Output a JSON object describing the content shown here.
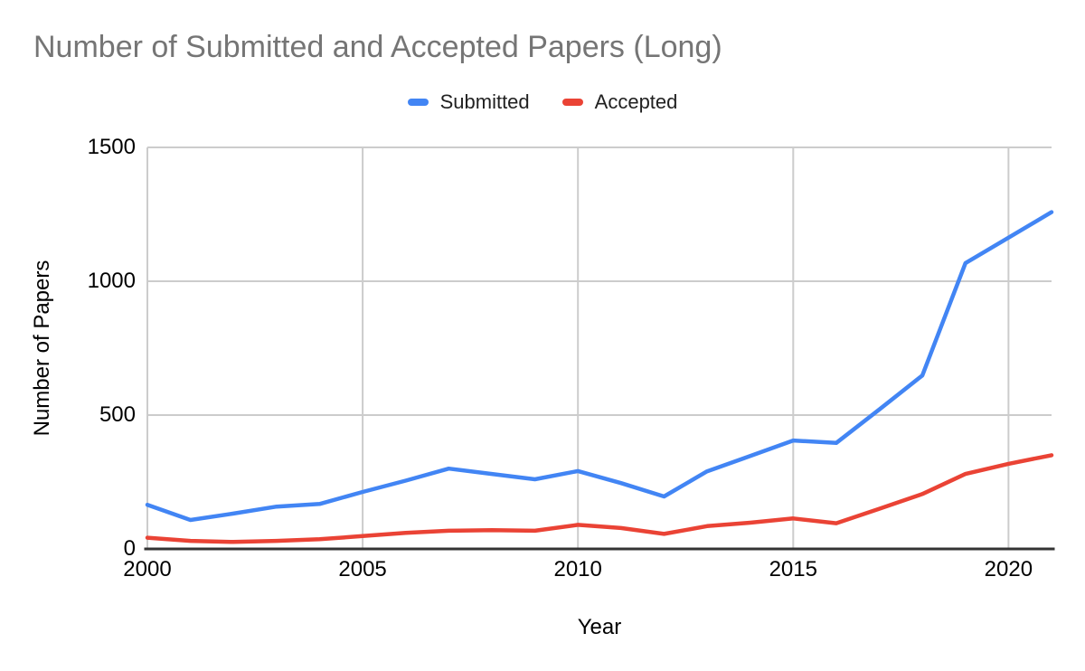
{
  "title": {
    "text": "Number of Submitted and Accepted Papers (Long)",
    "color": "#757575"
  },
  "legend": {
    "items": [
      {
        "label": "Submitted",
        "color": "#4285f4"
      },
      {
        "label": "Accepted",
        "color": "#ea4335"
      }
    ]
  },
  "chart_data": {
    "type": "line",
    "title": "Number of Submitted and Accepted Papers (Long)",
    "xlabel": "Year",
    "ylabel": "Number of Papers",
    "x": [
      2000,
      2001,
      2002,
      2003,
      2004,
      2005,
      2006,
      2007,
      2008,
      2009,
      2010,
      2011,
      2012,
      2013,
      2014,
      2015,
      2016,
      2017,
      2018,
      2019,
      2020,
      2021
    ],
    "series": [
      {
        "name": "Submitted",
        "color": "#4285f4",
        "values": [
          165,
          108,
          132,
          158,
          168,
          213,
          255,
          300,
          280,
          260,
          291,
          246,
          196,
          290,
          347,
          405,
          396,
          521,
          648,
          1068,
          1163,
          1258
        ]
      },
      {
        "name": "Accepted",
        "color": "#ea4335",
        "values": [
          42,
          30,
          26,
          30,
          36,
          48,
          60,
          68,
          70,
          68,
          90,
          78,
          56,
          85,
          98,
          114,
          96,
          150,
          205,
          280,
          318,
          350
        ]
      }
    ],
    "xlim": [
      2000,
      2021
    ],
    "ylim": [
      0,
      1500
    ],
    "x_ticks": [
      2000,
      2005,
      2010,
      2015,
      2020
    ],
    "y_ticks": [
      0,
      500,
      1000,
      1500
    ],
    "grid": true,
    "legend_position": "top",
    "grid_color": "#cccccc",
    "axis_color": "#333333"
  }
}
